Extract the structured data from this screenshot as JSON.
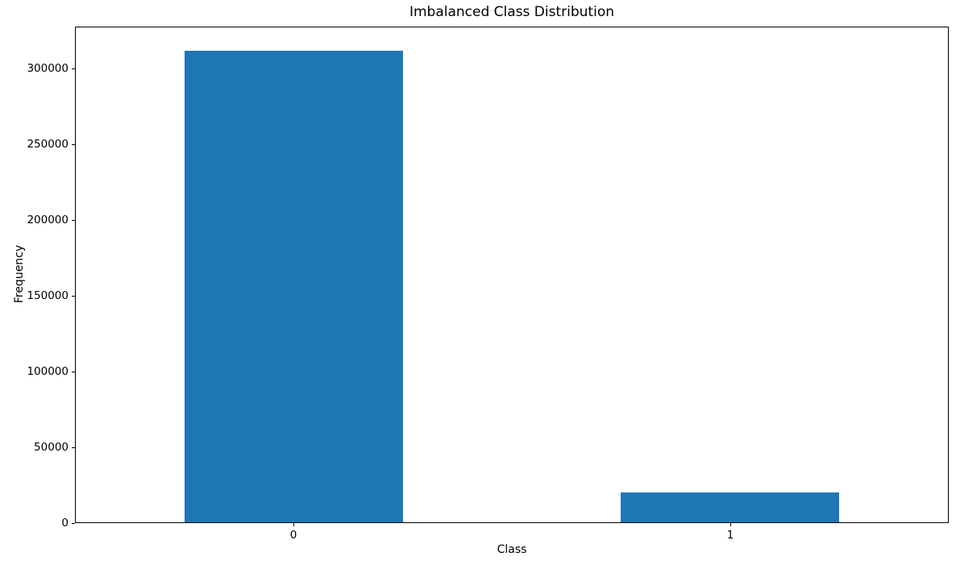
{
  "chart_data": {
    "type": "bar",
    "title": "Imbalanced Class Distribution",
    "xlabel": "Class",
    "ylabel": "Frequency",
    "categories": [
      "0",
      "1"
    ],
    "values": [
      312000,
      19800
    ],
    "ylim": [
      0,
      327500
    ],
    "yticks": [
      0,
      50000,
      100000,
      150000,
      200000,
      250000,
      300000
    ],
    "grid": false,
    "bar_color": "#1f77b4",
    "bar_width_fraction": 0.25,
    "background_color": "#ffffff",
    "text_color": "#000000",
    "spine_color": "#000000"
  }
}
